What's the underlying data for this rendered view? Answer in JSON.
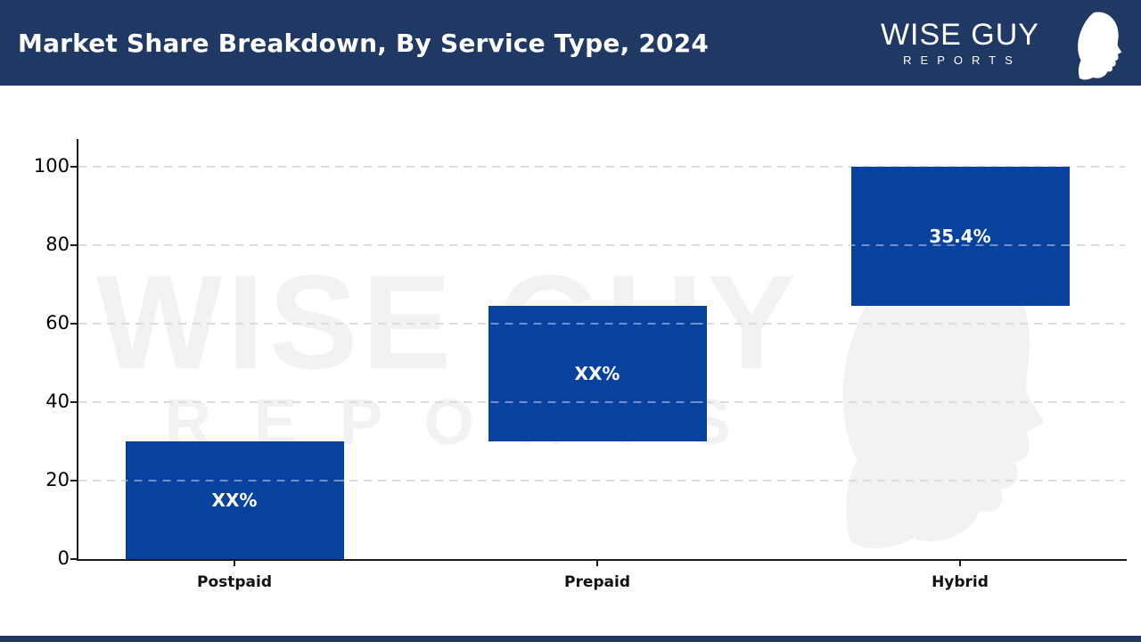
{
  "header": {
    "title": "Market Share Breakdown, By Service Type, 2024",
    "logo": {
      "line1": "WISE GUY",
      "line2": "REPORTS"
    }
  },
  "watermark": {
    "line1": "WISE GUY",
    "line2": "R E P O R T S"
  },
  "colors": {
    "header_bg": "#1f3864",
    "footer_bg": "#1f3864",
    "bar": "#08429f",
    "gridline": "#dcdcdc",
    "watermark": "#f1f2f4",
    "axis": "#1a1a1a",
    "bar_label": "#ffffff"
  },
  "chart_data": {
    "type": "bar",
    "subtype": "waterfall-floating-bars",
    "title": "Market Share Breakdown, By Service Type, 2024",
    "categories": [
      "Postpaid",
      "Prepaid",
      "Hybrid"
    ],
    "segments": [
      {
        "category": "Postpaid",
        "start": 0,
        "end": 30,
        "label": "XX%"
      },
      {
        "category": "Prepaid",
        "start": 30,
        "end": 64.6,
        "label": "XX%"
      },
      {
        "category": "Hybrid",
        "start": 64.6,
        "end": 100,
        "label": "35.4%"
      }
    ],
    "xlabel": "",
    "ylabel": "",
    "ylim": [
      0,
      100
    ],
    "yticks": [
      0,
      20,
      40,
      60,
      80,
      100
    ],
    "grid": "dashed-horizontal",
    "legend": "none"
  }
}
